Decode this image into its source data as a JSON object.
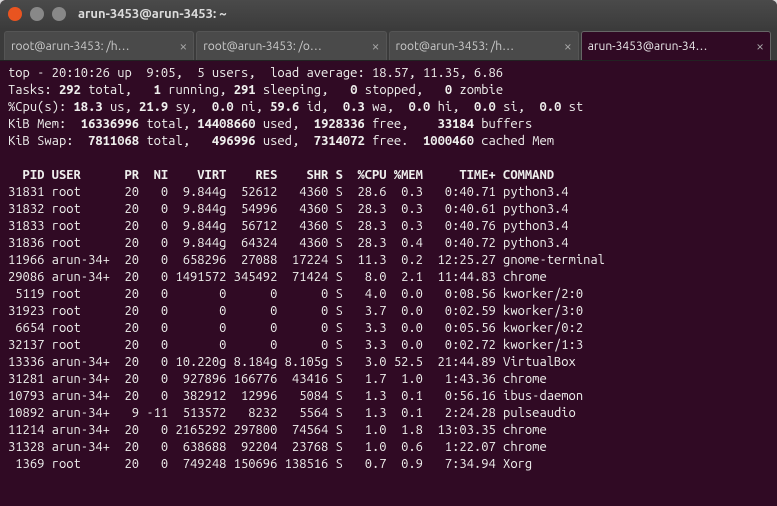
{
  "window": {
    "title": "arun-3453@arun-3453: ~"
  },
  "tabs": [
    {
      "label": "root@arun-3453: /h…",
      "active": false
    },
    {
      "label": "root@arun-3453: /o…",
      "active": false
    },
    {
      "label": "root@arun-3453: /h…",
      "active": false
    },
    {
      "label": "arun-3453@arun-34…",
      "active": true
    }
  ],
  "top": {
    "line1": "top - 20:10:26 up  9:05,  5 users,  load average: 18.57, 11.35, 6.86",
    "tasks_label": "Tasks:",
    "tasks_total": " 292 ",
    "tasks_total_word": "total,",
    "tasks_running": "   1 ",
    "tasks_running_word": "running,",
    "tasks_sleeping": " 291 ",
    "tasks_sleeping_word": "sleeping,",
    "tasks_stopped": "   0 ",
    "tasks_stopped_word": "stopped,",
    "tasks_zombie": "   0 ",
    "tasks_zombie_word": "zombie",
    "cpu_label": "%Cpu(s):",
    "cpu_us": " 18.3 ",
    "cpu_us_word": "us,",
    "cpu_sy": " 21.9 ",
    "cpu_sy_word": "sy,",
    "cpu_ni": "  0.0 ",
    "cpu_ni_word": "ni,",
    "cpu_id": " 59.6 ",
    "cpu_id_word": "id,",
    "cpu_wa": "  0.3 ",
    "cpu_wa_word": "wa,",
    "cpu_hi": "  0.0 ",
    "cpu_hi_word": "hi,",
    "cpu_si": "  0.0 ",
    "cpu_si_word": "si,",
    "cpu_st": "  0.0 ",
    "cpu_st_word": "st",
    "mem_label": "KiB Mem:",
    "mem_total": "  16336996 ",
    "mem_total_word": "total,",
    "mem_used": " 14408660 ",
    "mem_used_word": "used,",
    "mem_free": "  1928336 ",
    "mem_free_word": "free,",
    "mem_buffers": "    33184 ",
    "mem_buffers_word": "buffers",
    "swap_label": "KiB Swap:",
    "swap_total": "  7811068 ",
    "swap_total_word": "total,",
    "swap_used": "   496996 ",
    "swap_used_word": "used,",
    "swap_free": "  7314072 ",
    "swap_free_word": "free.",
    "swap_cached": "  1000460 ",
    "swap_cached_word": "cached Mem"
  },
  "columns": "  PID USER      PR  NI    VIRT    RES    SHR S  %CPU %MEM     TIME+ COMMAND     ",
  "rows": [
    "31831 root      20   0  9.844g  52612   4360 S  28.6  0.3   0:40.71 python3.4",
    "31832 root      20   0  9.844g  54996   4360 S  28.3  0.3   0:40.61 python3.4",
    "31833 root      20   0  9.844g  56712   4360 S  28.3  0.3   0:40.76 python3.4",
    "31836 root      20   0  9.844g  64324   4360 S  28.3  0.4   0:40.72 python3.4",
    "11966 arun-34+  20   0  658296  27088  17224 S  11.3  0.2  12:25.27 gnome-terminal",
    "29086 arun-34+  20   0 1491572 345492  71424 S   8.0  2.1  11:44.83 chrome",
    " 5119 root      20   0       0      0      0 S   4.0  0.0   0:08.56 kworker/2:0",
    "31923 root      20   0       0      0      0 S   3.7  0.0   0:02.59 kworker/3:0",
    " 6654 root      20   0       0      0      0 S   3.3  0.0   0:05.56 kworker/0:2",
    "32137 root      20   0       0      0      0 S   3.3  0.0   0:02.72 kworker/1:3",
    "13336 arun-34+  20   0 10.220g 8.184g 8.105g S   3.0 52.5  21:44.89 VirtualBox",
    "31281 arun-34+  20   0  927896 166776  43416 S   1.7  1.0   1:43.36 chrome",
    "10793 arun-34+  20   0  382912  12996   5084 S   1.3  0.1   0:56.16 ibus-daemon",
    "10892 arun-34+   9 -11  513572   8232   5564 S   1.3  0.1   2:24.28 pulseaudio",
    "11214 arun-34+  20   0 2165292 297800  74564 S   1.0  1.8  13:03.35 chrome",
    "31328 arun-34+  20   0  638688  92204  23768 S   1.0  0.6   1:22.07 chrome",
    " 1369 root      20   0  749248 150696 138516 S   0.7  0.9   7:34.94 Xorg"
  ]
}
